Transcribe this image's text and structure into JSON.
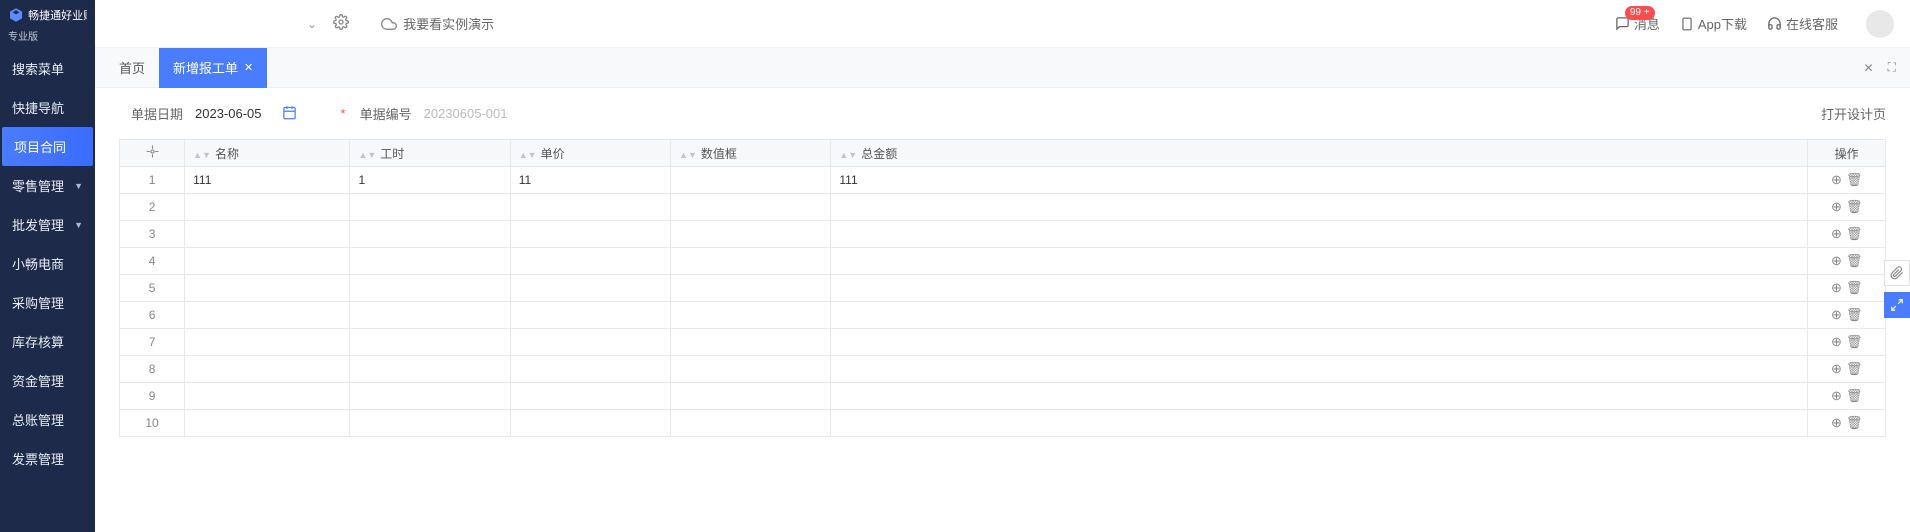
{
  "brand": {
    "name": "畅捷通好业财",
    "edition": "专业版"
  },
  "sidebar": {
    "items": [
      {
        "label": "搜索菜单",
        "caret": false
      },
      {
        "label": "快捷导航",
        "caret": false
      },
      {
        "label": "项目合同",
        "caret": false,
        "active": true
      },
      {
        "label": "零售管理",
        "caret": true
      },
      {
        "label": "批发管理",
        "caret": true
      },
      {
        "label": "小畅电商",
        "caret": false
      },
      {
        "label": "采购管理",
        "caret": false
      },
      {
        "label": "库存核算",
        "caret": false
      },
      {
        "label": "资金管理",
        "caret": false
      },
      {
        "label": "总账管理",
        "caret": false
      },
      {
        "label": "发票管理",
        "caret": false
      }
    ]
  },
  "topbar": {
    "org_name": "",
    "demo_text": "我要看实例演示",
    "msg": "消息",
    "msg_badge": "99 +",
    "download": "App下载",
    "support": "在线客服"
  },
  "tabs": {
    "home": "首页",
    "active": "新增报工单"
  },
  "form": {
    "date_label": "单据日期",
    "date_value": "2023-06-05",
    "code_label": "单据编号",
    "code_placeholder": "20230605-001",
    "design_link": "打开设计页"
  },
  "table": {
    "columns": {
      "name": "名称",
      "hours": "工时",
      "price": "单价",
      "numbox": "数值框",
      "amount": "总金额",
      "ops": "操作"
    },
    "rows": [
      {
        "n": "1",
        "name": "111",
        "hours": "1",
        "price": "11",
        "numbox": "",
        "amount": "111"
      },
      {
        "n": "2"
      },
      {
        "n": "3"
      },
      {
        "n": "4"
      },
      {
        "n": "5"
      },
      {
        "n": "6"
      },
      {
        "n": "7"
      },
      {
        "n": "8"
      },
      {
        "n": "9"
      },
      {
        "n": "10"
      }
    ]
  }
}
